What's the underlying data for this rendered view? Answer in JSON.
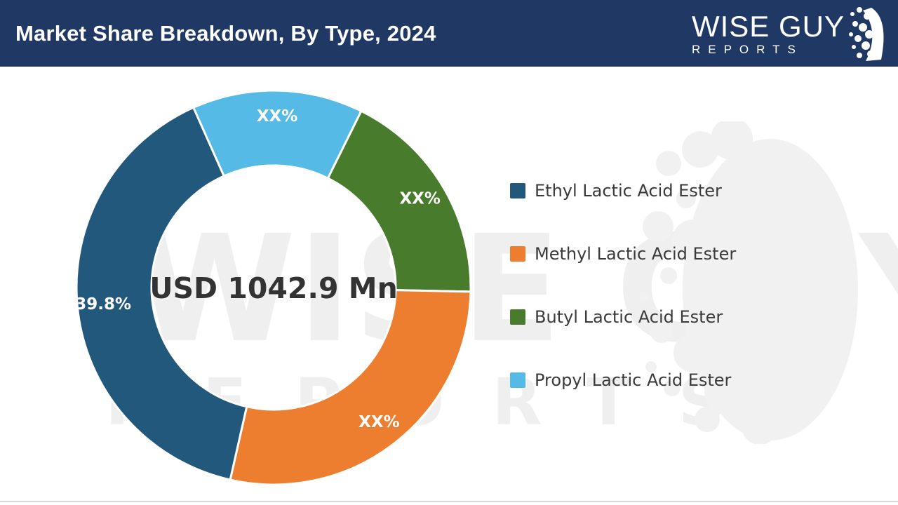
{
  "header": {
    "title": "Market Share Breakdown, By Type, 2024",
    "logo": {
      "line1": "WISE GUY",
      "line2": "REPORTS"
    }
  },
  "watermark": {
    "line1": "WISE GUY",
    "line2": "REPORTS"
  },
  "chart_data": {
    "type": "pie",
    "donut": true,
    "title": "Market Share Breakdown, By Type, 2024",
    "center_label": "USD 1042.9 Mn",
    "start_angle_deg": -24,
    "inner_radius_ratio": 0.62,
    "legend_position": "right",
    "segments": [
      {
        "name": "Propyl Lactic Acid Ester",
        "value_pct": 14.0,
        "label": "XX%",
        "color": "#55bae5"
      },
      {
        "name": "Butyl Lactic Acid Ester",
        "value_pct": 18.0,
        "label": "XX%",
        "color": "#487b2c"
      },
      {
        "name": "Methyl Lactic Acid Ester",
        "value_pct": 28.2,
        "label": "XX%",
        "color": "#ed7e30"
      },
      {
        "name": "Ethyl Lactic Acid Ester",
        "value_pct": 39.8,
        "label": "39.8%",
        "color": "#22587c"
      }
    ],
    "legend_order": [
      3,
      2,
      1,
      0
    ]
  },
  "colors": {
    "header_bg": "#203864",
    "center_text": "#333333",
    "watermark": "#efefef"
  }
}
